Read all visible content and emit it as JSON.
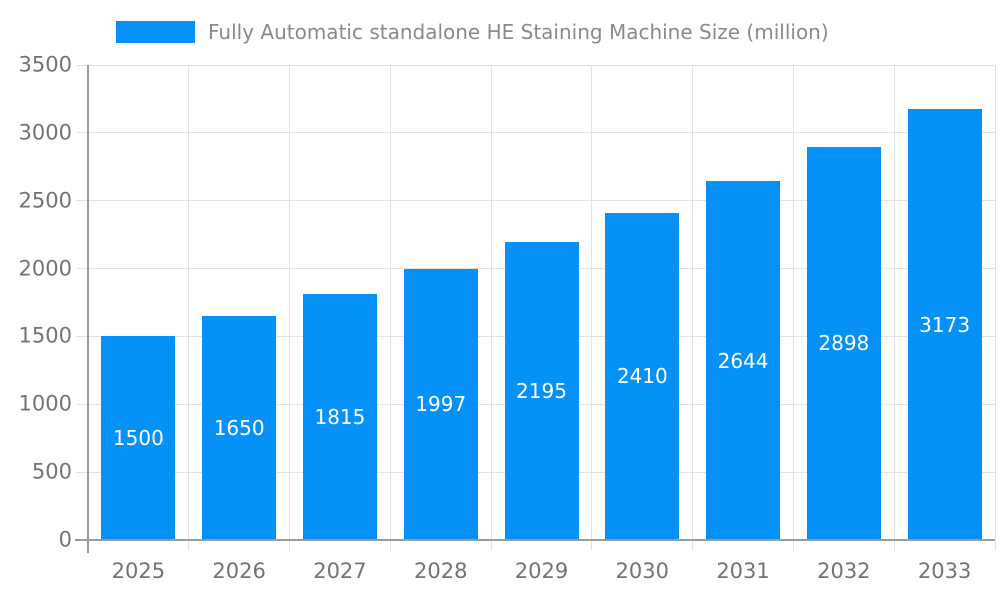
{
  "chart_data": {
    "type": "bar",
    "title": "Fully Automatic standalone HE Staining Machine Size (million)",
    "legend_entries": [
      "Fully Automatic standalone HE Staining Machine Size (million)"
    ],
    "legend_position": "top-left",
    "categories": [
      "2025",
      "2026",
      "2027",
      "2028",
      "2029",
      "2030",
      "2031",
      "2032",
      "2033"
    ],
    "values": [
      1500,
      1650,
      1815,
      1997,
      2195,
      2410,
      2644,
      2898,
      3173
    ],
    "xlabel": "",
    "ylabel": "",
    "ylim": [
      0,
      3500
    ],
    "yticks": [
      0,
      500,
      1000,
      1500,
      2000,
      2500,
      3000,
      3500
    ],
    "grid": true,
    "bar_labels_inside": true,
    "colors": {
      "bar": "#0691f8",
      "bar_label": "#ffffff",
      "grid": "#e2e2e2",
      "axis": "#9a9a9a",
      "tick_label": "#737373",
      "legend_text": "#8a8a8a",
      "background": "#ffffff"
    }
  }
}
